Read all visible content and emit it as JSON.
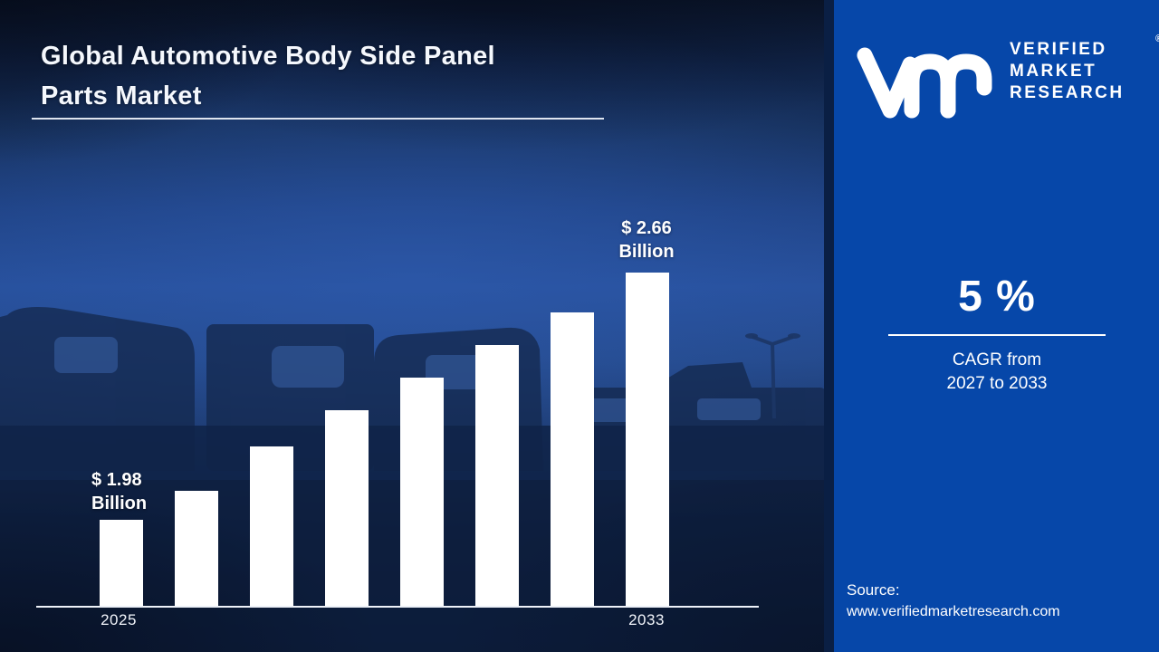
{
  "header": {
    "title_line1": "Global Automotive Body Side Panel",
    "title_line2": "Parts Market"
  },
  "brand": {
    "monogram_icon": "vmr-monogram",
    "name_line1": "VERIFIED",
    "name_line2": "MARKET",
    "name_line3": "RESEARCH",
    "registered_mark": "®"
  },
  "kpi": {
    "value": "5 %",
    "caption_line1": "CAGR from",
    "caption_line2": "2027 to 2033"
  },
  "source": {
    "label": "Source:",
    "url": "www.verifiedmarketresearch.com"
  },
  "chart_data": {
    "type": "bar",
    "title": "Global Automotive Body Side Panel Parts Market",
    "unit": "USD Billion",
    "categories": [
      "2025",
      "",
      "",
      "",
      "",
      "",
      "",
      "2033"
    ],
    "values": [
      1.98,
      2.06,
      2.18,
      2.28,
      2.37,
      2.46,
      2.55,
      2.66
    ],
    "labeled_values": {
      "first": 1.98,
      "last": 2.66
    },
    "first_point_label": {
      "line1": "$ 1.98",
      "line2": "Billion"
    },
    "last_point_label": {
      "line1": "$ 2.66",
      "line2": "Billion"
    },
    "x_tick_left": "2025",
    "x_tick_right": "2033",
    "bar_color": "#ffffff",
    "legend": "none",
    "grid": "off",
    "axis_value_at_baseline": 1.74
  },
  "colors": {
    "right_panel_blue": "#0647a9",
    "background_navy": "#0b1730",
    "bar_white": "#ffffff",
    "text_white": "#ffffff"
  }
}
